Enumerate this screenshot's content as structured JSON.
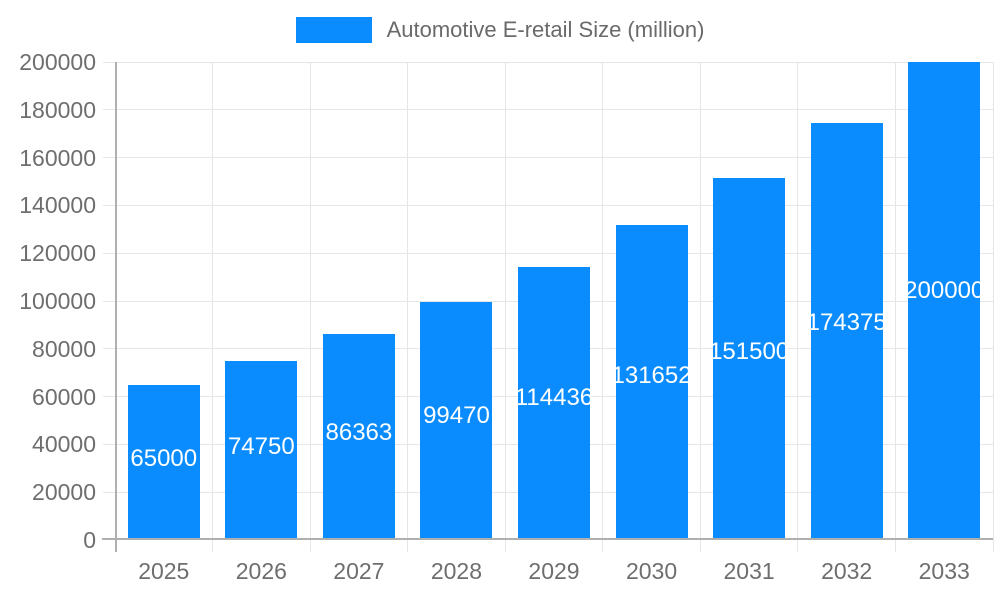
{
  "chart_data": {
    "type": "bar",
    "title": "Automotive E-retail Size (million)",
    "categories": [
      "2025",
      "2026",
      "2027",
      "2028",
      "2029",
      "2030",
      "2031",
      "2032",
      "2033"
    ],
    "values": [
      65000,
      74750,
      86363,
      99470,
      114436,
      131652,
      151500,
      174375,
      200000
    ],
    "series": [
      {
        "name": "Automotive E-retail Size (million)",
        "values": [
          65000,
          74750,
          86363,
          99470,
          114436,
          131652,
          151500,
          174375,
          200000
        ]
      }
    ],
    "xlabel": "",
    "ylabel": "",
    "ylim": [
      0,
      200000
    ],
    "ytick_step": 20000,
    "ytick_labels": [
      "0",
      "20000",
      "40000",
      "60000",
      "80000",
      "100000",
      "120000",
      "140000",
      "160000",
      "180000",
      "200000"
    ],
    "grid": true,
    "legend_position": "top",
    "value_labels_shown": true
  },
  "colors": {
    "bar_fill": "#0A8CFF",
    "value_label_text": "#FFFFFF",
    "gridline": "#E6E6E6",
    "axis_border": "#AFAFAF",
    "tick_label_text": "#6E6E6E",
    "legend_text": "#6A6A6A",
    "background": "#FFFFFF"
  }
}
